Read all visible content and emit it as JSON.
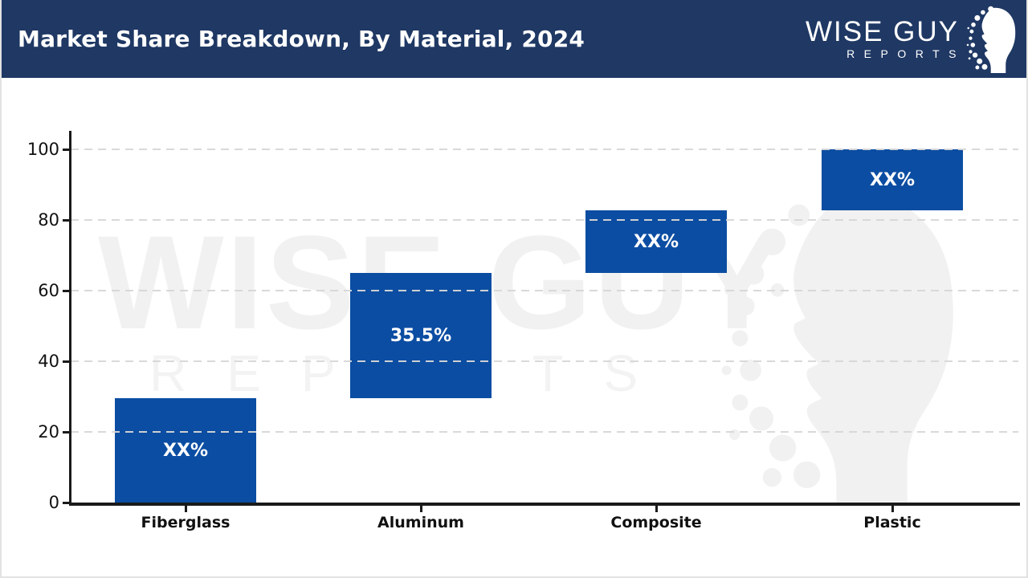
{
  "header": {
    "title": "Market Share Breakdown, By Material, 2024",
    "bg_color": "#1f3864",
    "logo": {
      "line1": "WISE GUY",
      "line2": "REPORTS"
    }
  },
  "watermark": {
    "line1": "WISE GUY",
    "line2": "REPORTS"
  },
  "chart_data": {
    "type": "bar",
    "variant": "floating-waterfall",
    "title": "Market Share Breakdown, By Material, 2024",
    "categories": [
      "Fiberglass",
      "Aluminum",
      "Composite",
      "Plastic"
    ],
    "segments": [
      {
        "category": "Fiberglass",
        "from": 0,
        "to": 29.5,
        "label": "XX%"
      },
      {
        "category": "Aluminum",
        "from": 29.5,
        "to": 65,
        "label": "35.5%"
      },
      {
        "category": "Composite",
        "from": 65,
        "to": 82.7,
        "label": "XX%"
      },
      {
        "category": "Plastic",
        "from": 82.7,
        "to": 100,
        "label": "XX%"
      }
    ],
    "bar_labels": [
      "XX%",
      "35.5%",
      "XX%",
      "XX%"
    ],
    "ylim": [
      0,
      100
    ],
    "yticks": [
      0,
      20,
      40,
      60,
      80,
      100
    ],
    "xlabel": "",
    "ylabel": "",
    "grid": "horizontal-dashed",
    "legend": false,
    "bar_color": "#0b4da2",
    "bar_label_color": "#ffffff",
    "axis_color": "#1a1a1a",
    "gridline_color": "#d7d7d7"
  }
}
